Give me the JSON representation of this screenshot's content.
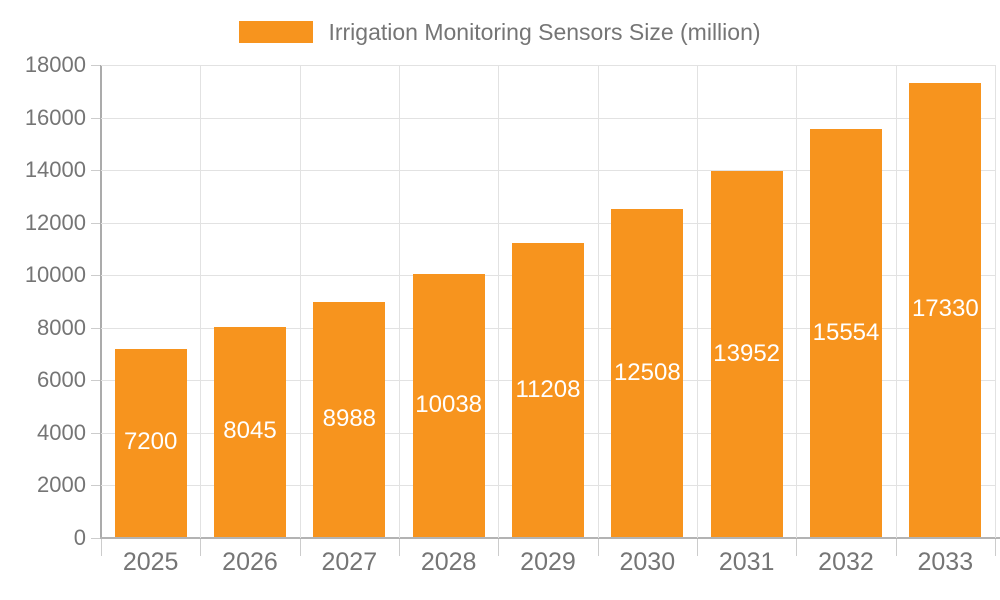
{
  "chart_data": {
    "type": "bar",
    "title": "Irrigation Monitoring Sensors Size (million)",
    "categories": [
      "2025",
      "2026",
      "2027",
      "2028",
      "2029",
      "2030",
      "2031",
      "2032",
      "2033"
    ],
    "series": [
      {
        "name": "Irrigation Monitoring Sensors Size (million)",
        "values": [
          7200,
          8045,
          8988,
          10038,
          11208,
          12508,
          13952,
          15554,
          17330
        ]
      }
    ],
    "xlabel": "",
    "ylabel": "",
    "ylim": [
      0,
      18000
    ],
    "ytick_step": 2000,
    "yticks": [
      0,
      2000,
      4000,
      6000,
      8000,
      10000,
      12000,
      14000,
      16000,
      18000
    ],
    "ytick_labels": [
      "0",
      "2000",
      "4000",
      "6000",
      "8000",
      "10000",
      "12000",
      "14000",
      "16000",
      "18000"
    ],
    "grid": "horizontal and vertical light-gray gridlines",
    "legend_position": "top-center",
    "value_label_position": "inside-center",
    "value_label_color": "#ffffff"
  },
  "colors": {
    "bar_fill": "#f7941e",
    "grid_line": "#e2e2e2",
    "axis_line": "#ababab",
    "tick_line": "#cccccc",
    "axis_text": "#757575",
    "background": "#ffffff"
  }
}
